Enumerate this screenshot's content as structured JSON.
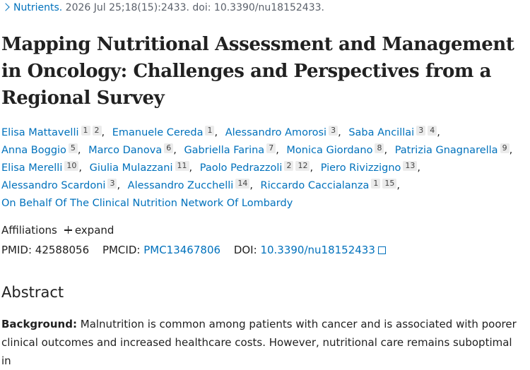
{
  "citation": {
    "journal": "Nutrients.",
    "details": "2026 Jul 25;18(15):2433. doi: 10.3390/nu18152433."
  },
  "title": "Mapping Nutritional Assessment and Management in Oncology: Challenges and Perspectives from a Regional Survey",
  "author_separator": ",",
  "authors": [
    {
      "name": "Elisa Mattavelli",
      "affiliations": [
        "1",
        "2"
      ]
    },
    {
      "name": "Emanuele Cereda",
      "affiliations": [
        "1"
      ]
    },
    {
      "name": "Alessandro Amorosi",
      "affiliations": [
        "3"
      ]
    },
    {
      "name": "Saba Ancillai",
      "affiliations": [
        "3",
        "4"
      ]
    },
    {
      "name": "Anna Boggio",
      "affiliations": [
        "5"
      ]
    },
    {
      "name": "Marco Danova",
      "affiliations": [
        "6"
      ]
    },
    {
      "name": "Gabriella Farina",
      "affiliations": [
        "7"
      ]
    },
    {
      "name": "Monica Giordano",
      "affiliations": [
        "8"
      ]
    },
    {
      "name": "Patrizia Gnagnarella",
      "affiliations": [
        "9"
      ]
    },
    {
      "name": "Elisa Merelli",
      "affiliations": [
        "10"
      ]
    },
    {
      "name": "Giulia Mulazzani",
      "affiliations": [
        "11"
      ]
    },
    {
      "name": "Paolo Pedrazzoli",
      "affiliations": [
        "2",
        "12"
      ]
    },
    {
      "name": "Piero Rivizzigno",
      "affiliations": [
        "13"
      ]
    },
    {
      "name": "Alessandro Scardoni",
      "affiliations": [
        "3"
      ]
    },
    {
      "name": "Alessandro Zucchelli",
      "affiliations": [
        "14"
      ]
    },
    {
      "name": "Riccardo Caccialanza",
      "affiliations": [
        "1",
        "15"
      ]
    }
  ],
  "group_author": "On Behalf Of The Clinical Nutrition Network Of Lombardy",
  "affiliations": {
    "label": "Affiliations",
    "toggle": "expand"
  },
  "identifiers": {
    "pmid_label": "PMID:",
    "pmid": "42588056",
    "pmcid_label": "PMCID:",
    "pmcid": "PMC13467806",
    "doi_label": "DOI:",
    "doi": "10.3390/nu18152433"
  },
  "abstract": {
    "heading": "Abstract",
    "label": "Background:",
    "text": "Malnutrition is common among patients with cancer and is associated with poorer clinical outcomes and increased healthcare costs. However, nutritional care remains suboptimal in"
  }
}
